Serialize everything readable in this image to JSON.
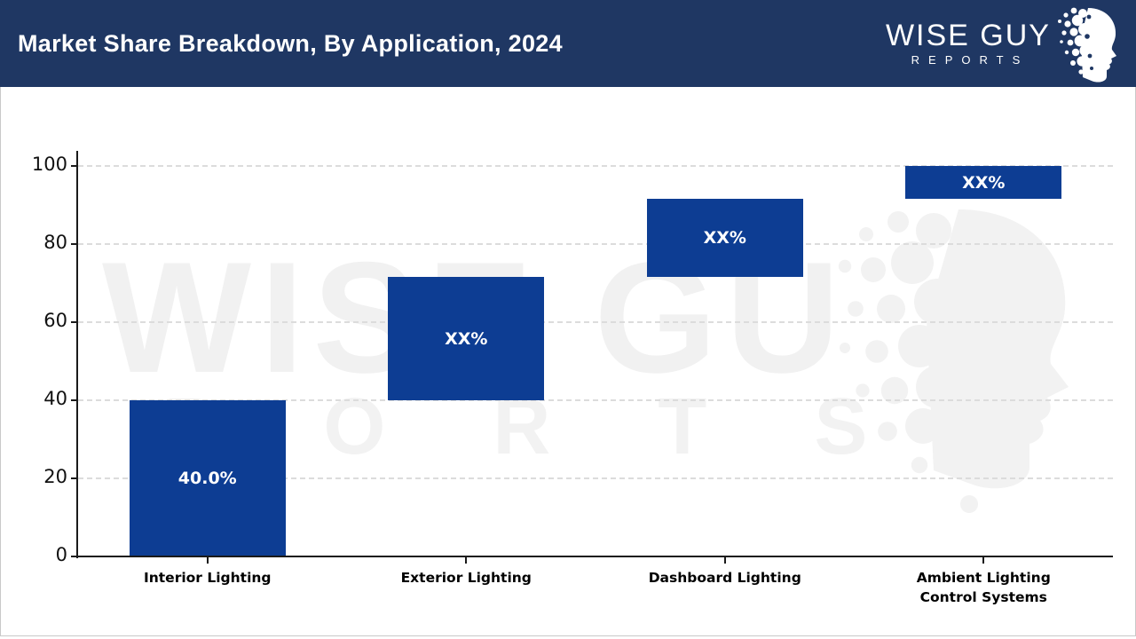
{
  "header": {
    "title": "Market Share Breakdown, By Application, 2024",
    "logo": {
      "line1": "WISE GUY",
      "line2": "REPORTS"
    }
  },
  "watermark": {
    "line1": "WISE GU",
    "line2": "P O R T S"
  },
  "colors": {
    "header_bg": "#1f3763",
    "bar": "#0d3d93",
    "grid": "#dcdcdc",
    "axis": "#1a1a1a",
    "value_label": "#ffffff",
    "watermark": "#f1f1f1"
  },
  "chart_data": {
    "type": "bar",
    "subtype": "waterfall",
    "title": "Market Share Breakdown, By Application, 2024",
    "xlabel": "",
    "ylabel": "",
    "categories": [
      "Interior Lighting",
      "Exterior Lighting",
      "Dashboard Lighting",
      "Ambient Lighting\nControl Systems"
    ],
    "segments": [
      {
        "category": "Interior Lighting",
        "start": 0,
        "end": 40,
        "label": "40.0%"
      },
      {
        "category": "Exterior Lighting",
        "start": 40,
        "end": 71.5,
        "label": "XX%"
      },
      {
        "category": "Dashboard Lighting",
        "start": 71.5,
        "end": 91.5,
        "label": "XX%"
      },
      {
        "category": "Ambient Lighting Control Systems",
        "start": 91.5,
        "end": 100,
        "label": "XX%"
      }
    ],
    "yticks": [
      0,
      20,
      40,
      60,
      80,
      100
    ],
    "ylim": [
      0,
      104
    ],
    "grid": "horizontal-dashed",
    "legend": "none"
  }
}
